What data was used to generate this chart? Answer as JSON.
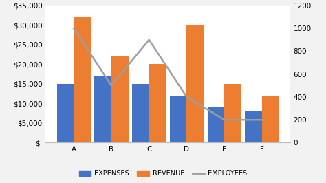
{
  "categories": [
    "A",
    "B",
    "C",
    "D",
    "E",
    "F"
  ],
  "expenses": [
    15000,
    17000,
    15000,
    12000,
    9000,
    8000
  ],
  "revenue": [
    32000,
    22000,
    20000,
    30000,
    15000,
    12000
  ],
  "employees": [
    1000,
    500,
    900,
    400,
    200,
    200
  ],
  "bar_color_expenses": "#4472C4",
  "bar_color_revenue": "#ED7D31",
  "line_color_employees": "#9E9E9E",
  "left_ylim": [
    0,
    35000
  ],
  "right_ylim": [
    0,
    1200
  ],
  "left_yticks": [
    0,
    5000,
    10000,
    15000,
    20000,
    25000,
    30000,
    35000
  ],
  "right_yticks": [
    0,
    200,
    400,
    600,
    800,
    1000,
    1200
  ],
  "legend_labels": [
    "EXPENSES",
    "REVENUE",
    "EMPLOYEES"
  ],
  "background_color": "#F2F2F2",
  "plot_bg_color": "#FFFFFF",
  "grid_color": "#FFFFFF",
  "bar_width": 0.45,
  "tick_fontsize": 7.5,
  "legend_fontsize": 7
}
